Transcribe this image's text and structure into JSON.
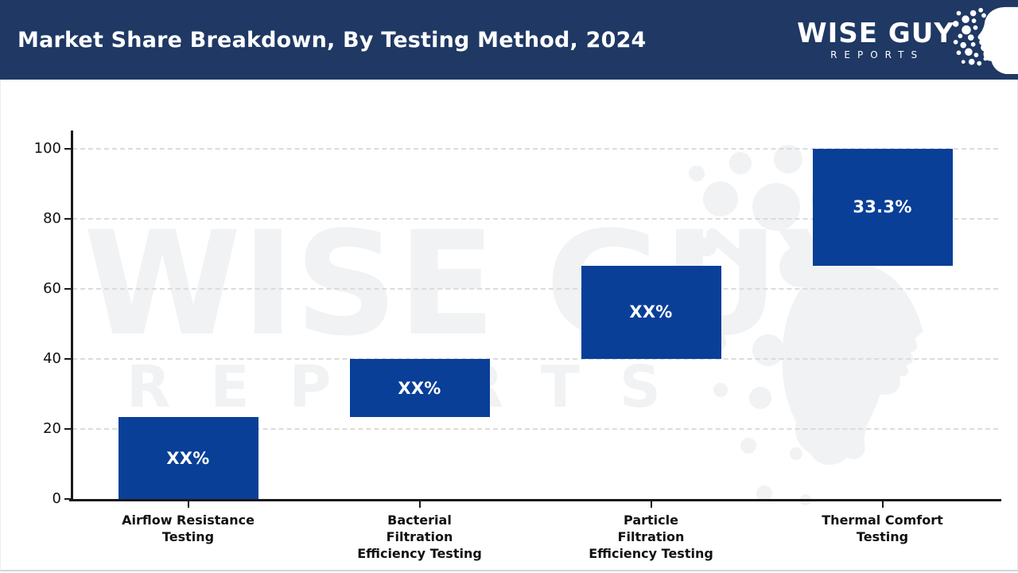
{
  "header": {
    "title": "Market Share Breakdown, By Testing Method, 2024",
    "logo": {
      "name": "WISE GUY",
      "subname": "REPORTS"
    }
  },
  "watermark": {
    "name": "WISE GUY",
    "subname": "REPORTS"
  },
  "chart_data": {
    "type": "bar",
    "variant": "waterfall",
    "title": "Market Share Breakdown, By Testing Method, 2024",
    "xlabel": "",
    "ylabel": "",
    "ylim": [
      0,
      100
    ],
    "yticks": [
      0,
      20,
      40,
      60,
      80,
      100
    ],
    "grid": {
      "axis": "y",
      "style": "dashed",
      "color": "#dcdcdc"
    },
    "legend": "none",
    "bar_color": "#0a3f98",
    "bar_label_color": "#ffffff",
    "categories": [
      "Airflow Resistance\nTesting",
      "Bacterial\nFiltration\nEfficiency Testing",
      "Particle\nFiltration\nEfficiency Testing",
      "Thermal Comfort\nTesting"
    ],
    "segments": [
      {
        "start": 0,
        "end": 23.3,
        "value": 23.3,
        "label": "XX%"
      },
      {
        "start": 23.3,
        "end": 40,
        "value": 16.7,
        "label": "XX%"
      },
      {
        "start": 40,
        "end": 66.7,
        "value": 26.7,
        "label": "XX%"
      },
      {
        "start": 66.7,
        "end": 100,
        "value": 33.3,
        "label": "33.3%"
      }
    ]
  }
}
